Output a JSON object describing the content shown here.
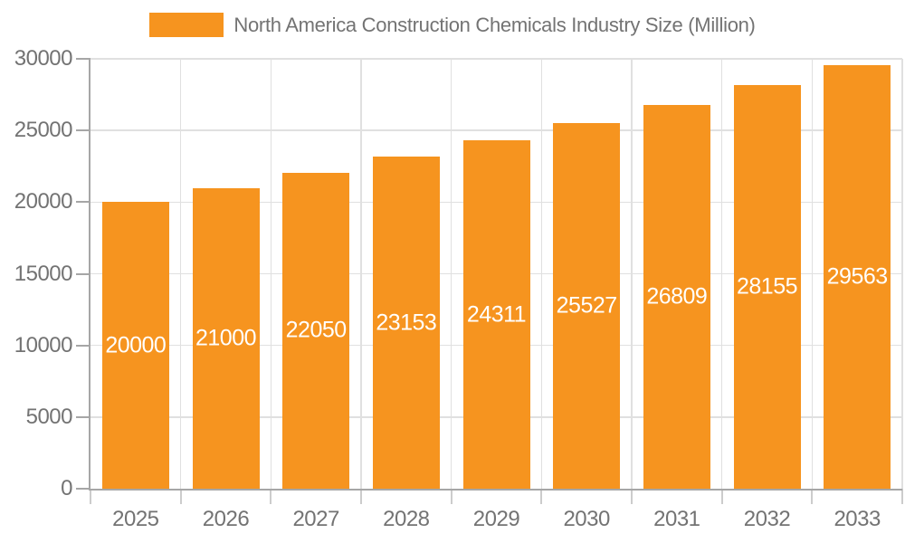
{
  "legend": {
    "label": "North America Construction Chemicals Industry Size (Million)"
  },
  "chart_data": {
    "type": "bar",
    "title": "North America Construction Chemicals Industry Size (Million)",
    "categories": [
      "2025",
      "2026",
      "2027",
      "2028",
      "2029",
      "2030",
      "2031",
      "2032",
      "2033"
    ],
    "values": [
      20000,
      21000,
      22050,
      23153,
      24311,
      25527,
      26809,
      28155,
      29563
    ],
    "xlabel": "",
    "ylabel": "",
    "ylim": [
      0,
      30000
    ],
    "yticks": [
      0,
      5000,
      10000,
      15000,
      20000,
      25000,
      30000
    ],
    "grid": true,
    "legend_position": "top",
    "bar_color": "#F6941F",
    "value_label_color": "#ffffff",
    "axis_text_color": "#737373"
  }
}
